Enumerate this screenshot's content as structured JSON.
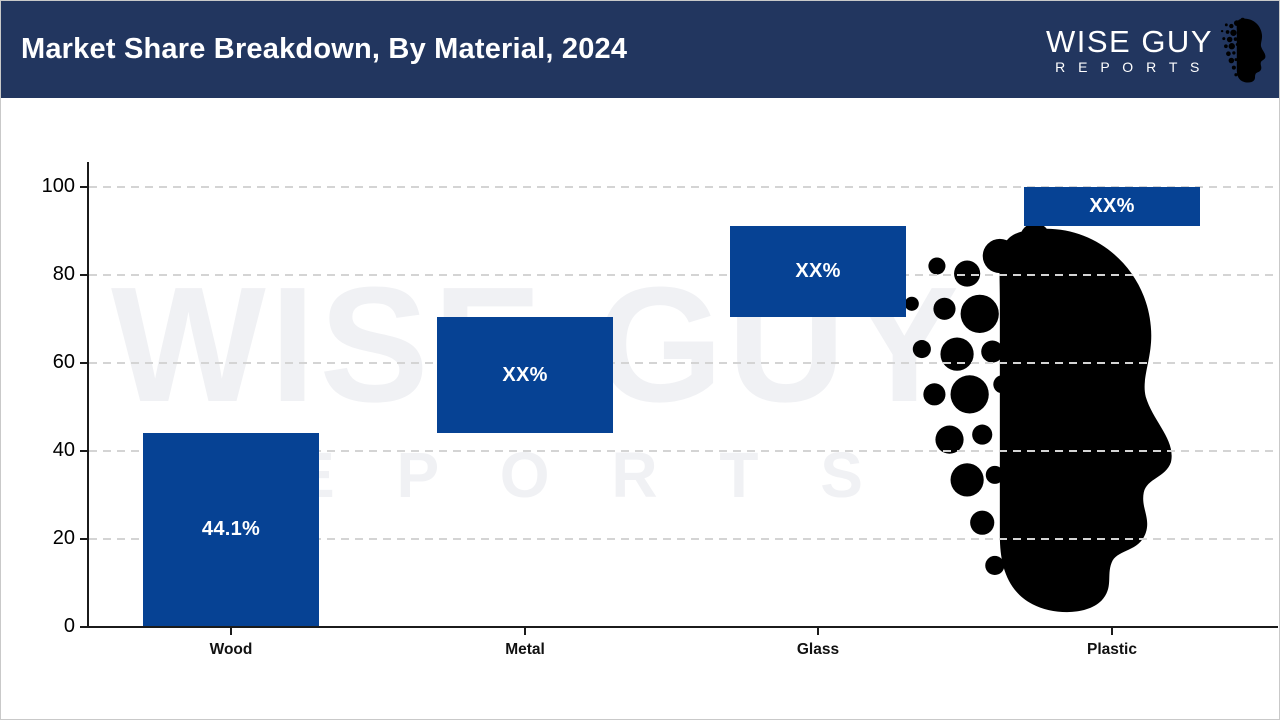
{
  "header": {
    "title": "Market Share Breakdown, By Material, 2024",
    "bg_color": "#22365f",
    "logo": {
      "line1": "WISE GUY",
      "line2": "R E P O R T S"
    }
  },
  "watermark": {
    "line1": "WISE GUY",
    "line2": "R E P O R T S"
  },
  "colors": {
    "header_navy": "#22365f",
    "bar_blue": "#064294",
    "grid_gray": "#d4d4d4"
  },
  "chart_data": {
    "type": "bar",
    "subtype": "waterfall",
    "title": "Market Share Breakdown, By Material, 2024",
    "categories": [
      "Wood",
      "Metal",
      "Glass",
      "Plastic"
    ],
    "segments": [
      {
        "category": "Wood",
        "start": 0,
        "end": 44.1,
        "label": "44.1%"
      },
      {
        "category": "Metal",
        "start": 44.1,
        "end": 70.4,
        "label": "XX%"
      },
      {
        "category": "Glass",
        "start": 70.4,
        "end": 91.1,
        "label": "XX%"
      },
      {
        "category": "Plastic",
        "start": 91.1,
        "end": 100,
        "label": "XX%"
      }
    ],
    "xlabel": "",
    "ylabel": "",
    "yticks": [
      0,
      20,
      40,
      60,
      80,
      100
    ],
    "ylim": [
      0,
      106
    ],
    "grid": "horizontal-dashed",
    "legend": "none",
    "bar_color": "#064294",
    "bar_label_color": "#ffffff"
  }
}
